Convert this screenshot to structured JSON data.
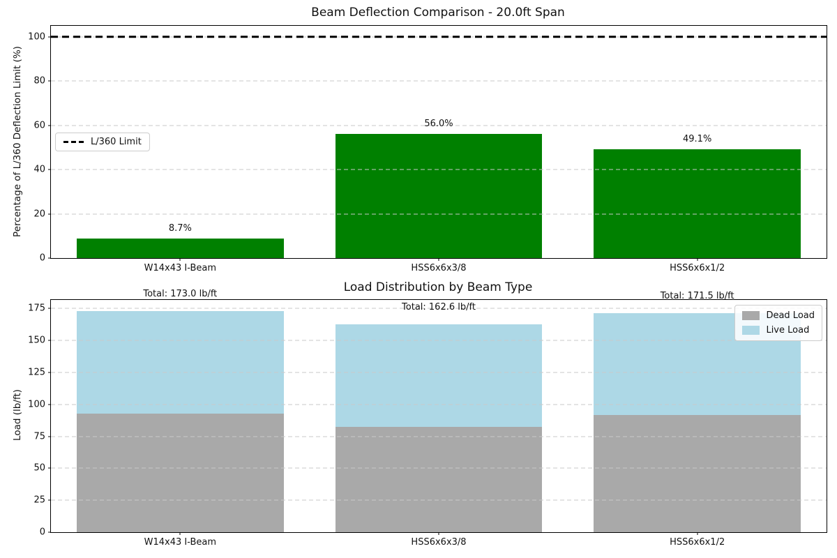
{
  "chart_data": [
    {
      "type": "bar",
      "title": "Beam Deflection Comparison - 20.0ft Span",
      "ylabel": "Percentage of L/360 Deflection Limit (%)",
      "categories": [
        "W14x43 I-Beam",
        "HSS6x6x3/8",
        "HSS6x6x1/2"
      ],
      "values": [
        8.7,
        56.0,
        49.1
      ],
      "value_labels": [
        "8.7%",
        "56.0%",
        "49.1%"
      ],
      "bar_color": "#008000",
      "yticks": [
        0,
        20,
        40,
        60,
        80,
        100
      ],
      "ylim": [
        0,
        105
      ],
      "grid": "dashed-horizontal",
      "ref_line": {
        "value": 100,
        "label": "L/360 Limit",
        "color": "#000000",
        "style": "dashed"
      },
      "legend_position": "center-left"
    },
    {
      "type": "stacked-bar",
      "title": "Load Distribution by Beam Type",
      "ylabel": "Load (lb/ft)",
      "categories": [
        "W14x43 I-Beam",
        "HSS6x6x3/8",
        "HSS6x6x1/2"
      ],
      "series": [
        {
          "name": "Dead Load",
          "color": "#a9a9a9",
          "values": [
            93.0,
            82.6,
            91.5
          ]
        },
        {
          "name": "Live Load",
          "color": "#add8e6",
          "values": [
            80.0,
            80.0,
            80.0
          ]
        }
      ],
      "totals": [
        173.0,
        162.6,
        171.5
      ],
      "total_labels": [
        "Total: 173.0 lb/ft",
        "Total: 162.6 lb/ft",
        "Total: 171.5 lb/ft"
      ],
      "yticks": [
        0,
        25,
        50,
        75,
        100,
        125,
        150,
        175
      ],
      "ylim": [
        0,
        181.7
      ],
      "grid": "dashed-horizontal",
      "legend_position": "upper-right"
    }
  ]
}
